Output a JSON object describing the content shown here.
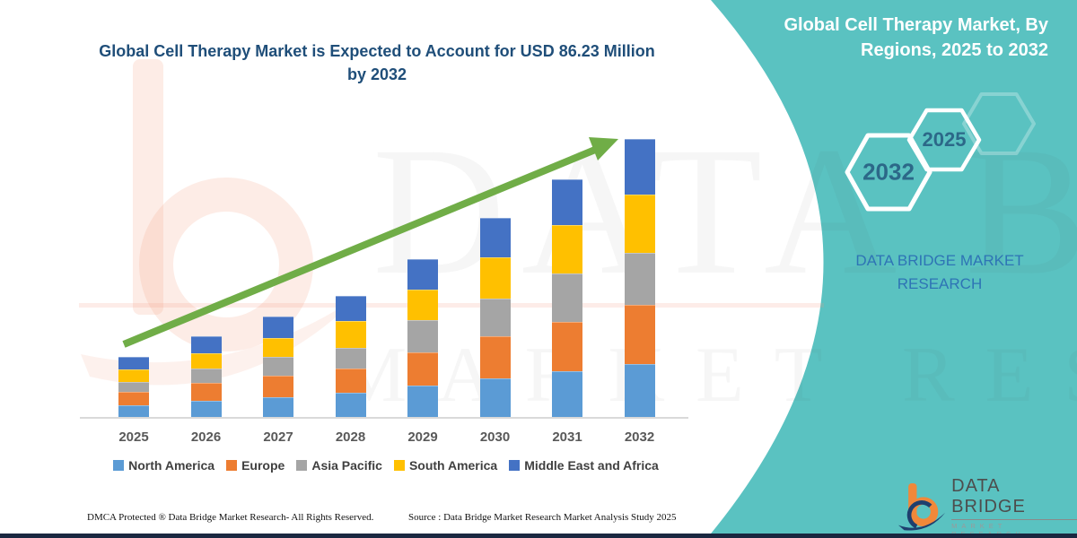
{
  "header": {
    "main_title": "Global Cell Therapy Market is Expected to Account for USD 86.23 Million by 2032",
    "panel_title": "Global Cell Therapy Market, By Regions, 2025 to 2032"
  },
  "side_panel": {
    "accent_color": "#5ac2c1",
    "hexagons": [
      {
        "label": "2032"
      },
      {
        "label": "2025"
      }
    ],
    "brand_text": "DATA BRIDGE MARKET RESEARCH"
  },
  "chart_data": {
    "type": "bar",
    "stacked": true,
    "unit": "USD Million",
    "title": "Global Cell Therapy Market is Expected to Account for USD 86.23 Million by 2032",
    "xlabel": "",
    "ylabel": "",
    "ylim": [
      0,
      90
    ],
    "grid": false,
    "legend_position": "bottom",
    "categories": [
      "2025",
      "2026",
      "2027",
      "2028",
      "2029",
      "2030",
      "2031",
      "2032"
    ],
    "series": [
      {
        "name": "North America",
        "color": "#5B9BD5",
        "values": [
          3.5,
          4.9,
          6.0,
          7.6,
          9.7,
          12.0,
          14.2,
          16.5
        ]
      },
      {
        "name": "Europe",
        "color": "#ED7D31",
        "values": [
          4.2,
          5.6,
          6.9,
          7.4,
          10.2,
          13.0,
          15.3,
          18.1
        ]
      },
      {
        "name": "Asia Pacific",
        "color": "#A5A5A5",
        "values": [
          3.1,
          4.4,
          5.6,
          6.5,
          10.2,
          11.6,
          15.0,
          16.23
        ]
      },
      {
        "name": "South America",
        "color": "#FFC000",
        "values": [
          3.9,
          4.9,
          5.9,
          8.1,
          9.4,
          12.8,
          15.0,
          18.0
        ]
      },
      {
        "name": "Middle East and Africa",
        "color": "#4472C4",
        "values": [
          3.9,
          5.1,
          6.7,
          8.0,
          9.5,
          12.2,
          14.2,
          17.4
        ]
      }
    ],
    "totals": [
      18.6,
      24.9,
      31.1,
      37.6,
      49.0,
      61.6,
      73.7,
      86.23
    ],
    "trend_arrow_color": "#70AD47"
  },
  "watermark": {
    "line1": "DATA BRIDGE",
    "line2": "MARKET RESEARCH"
  },
  "footer": {
    "dmca": "DMCA Protected ® Data Bridge Market Research- All Rights Reserved.",
    "source": "Source : Data Bridge Market Research Market Analysis Study 2025",
    "logo": {
      "icon": "data-bridge-b-logo",
      "title": "DATA BRIDGE",
      "subtitle": "MARKET RESEARCH"
    }
  }
}
